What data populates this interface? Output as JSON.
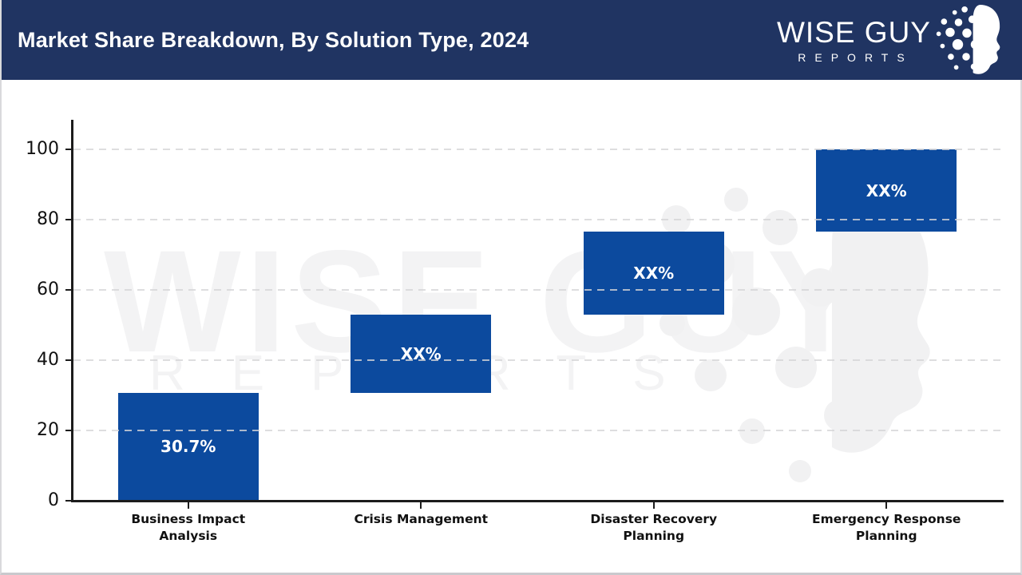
{
  "header": {
    "title": "Market Share Breakdown, By Solution Type, 2024",
    "bg_color": "#203462",
    "brand": {
      "name": "WISE GUY",
      "sub": "REPORTS"
    }
  },
  "watermark": {
    "line1": "WISE GUY",
    "line2": "REPORTS"
  },
  "chart_data": {
    "type": "bar",
    "subtype": "waterfall",
    "title": "Market Share Breakdown, By Solution Type, 2024",
    "categories": [
      "Business Impact Analysis",
      "Crisis Management",
      "Disaster Recovery Planning",
      "Emergency Response Planning"
    ],
    "series": [
      {
        "name": "Market Share (%)",
        "segments": [
          {
            "start": 0,
            "end": 30.7,
            "label": "30.7%"
          },
          {
            "start": 30.7,
            "end": 53.0,
            "label": "XX%"
          },
          {
            "start": 53.0,
            "end": 76.5,
            "label": "XX%"
          },
          {
            "start": 76.5,
            "end": 100,
            "label": "XX%"
          }
        ]
      }
    ],
    "xlabel": "",
    "ylabel": "",
    "ylim": [
      0,
      108
    ],
    "yticks": [
      0,
      20,
      40,
      60,
      80,
      100
    ],
    "grid": "horizontal-dashed",
    "legend": "none",
    "bar_color": "#0c4a9e",
    "bar_label_color": "#ffffff",
    "axis_color": "#1c1c1c",
    "grid_color": "#dcdcdc"
  }
}
